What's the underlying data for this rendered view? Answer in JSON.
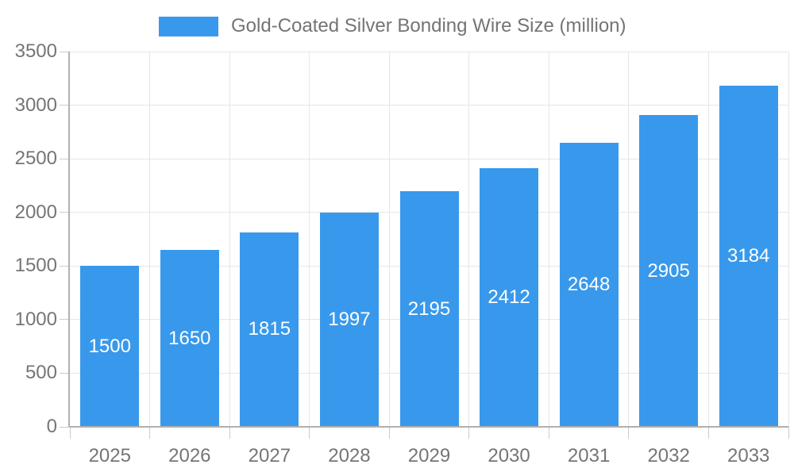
{
  "chart_data": {
    "type": "bar",
    "title": "",
    "legend": "Gold-Coated Silver Bonding Wire Size (million)",
    "legend_position": "top",
    "categories": [
      "2025",
      "2026",
      "2027",
      "2028",
      "2029",
      "2030",
      "2031",
      "2032",
      "2033"
    ],
    "values": [
      1500,
      1650,
      1815,
      1997,
      2195,
      2412,
      2648,
      2905,
      3184
    ],
    "xlabel": "",
    "ylabel": "",
    "ylim": [
      0,
      3500
    ],
    "ytick_step": 500,
    "grid": true,
    "bar_value_labels_inside": true,
    "colors": {
      "bar": "#3899ec",
      "bar_label": "#ffffff",
      "axis_text": "#757575",
      "legend_text": "#747474",
      "grid_line": "#e6e6e6",
      "tick_line": "#cccccc",
      "axis_line": "#b0b0b0",
      "background": "#ffffff"
    }
  }
}
